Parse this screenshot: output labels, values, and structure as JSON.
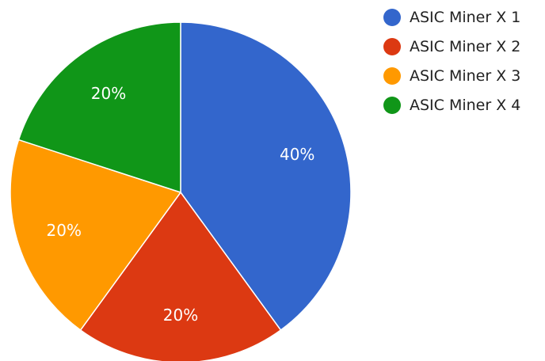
{
  "chart_data": {
    "type": "pie",
    "title": "",
    "categories": [
      "ASIC Miner X 1",
      "ASIC Miner X 2",
      "ASIC Miner X 3",
      "ASIC Miner X 4"
    ],
    "values": [
      40,
      20,
      20,
      20
    ],
    "data_labels": [
      "40%",
      "20%",
      "20%",
      "20%"
    ],
    "colors": [
      "#3366cc",
      "#dc3912",
      "#ff9900",
      "#109618"
    ],
    "legend_position": "right",
    "start_angle": "12 o'clock",
    "direction": "clockwise"
  }
}
